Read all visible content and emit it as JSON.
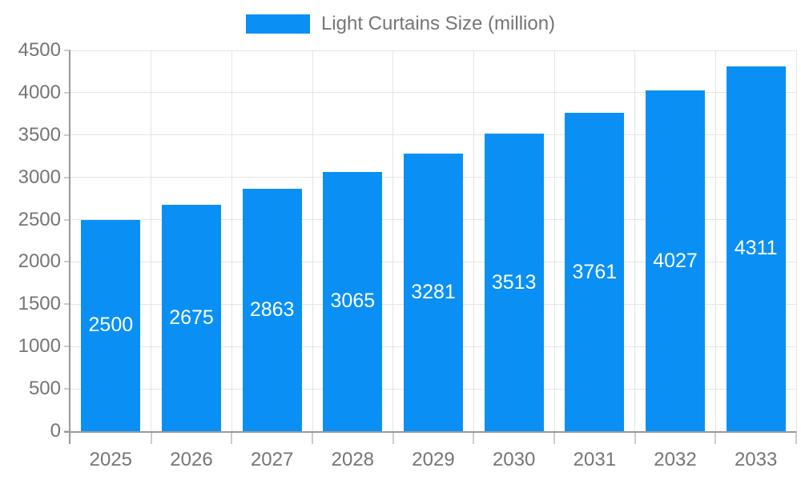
{
  "legend": {
    "label": "Light Curtains Size (million)"
  },
  "colors": {
    "bar": "#0a90f5",
    "grid": "#e4e4e4",
    "tick": "#cccccc",
    "axis": "#999999",
    "text": "#757575",
    "bar_label": "#ffffff",
    "background": "#ffffff"
  },
  "chart_data": {
    "type": "bar",
    "title": "Light Curtains Size (million)",
    "categories": [
      "2025",
      "2026",
      "2027",
      "2028",
      "2029",
      "2030",
      "2031",
      "2032",
      "2033"
    ],
    "values": [
      2500,
      2675,
      2863,
      3065,
      3281,
      3513,
      3761,
      4027,
      4311
    ],
    "xlabel": "",
    "ylabel": "",
    "ylim": [
      0,
      4500
    ],
    "ytick_step": 500,
    "ytick_labels": [
      "0",
      "500",
      "1000",
      "1500",
      "2000",
      "2500",
      "3000",
      "3500",
      "4000",
      "4500"
    ],
    "grid": true,
    "legend_entries": [
      "Light Curtains Size (million)"
    ],
    "legend_position": "top-center",
    "bar_label_position": "inside-center"
  }
}
